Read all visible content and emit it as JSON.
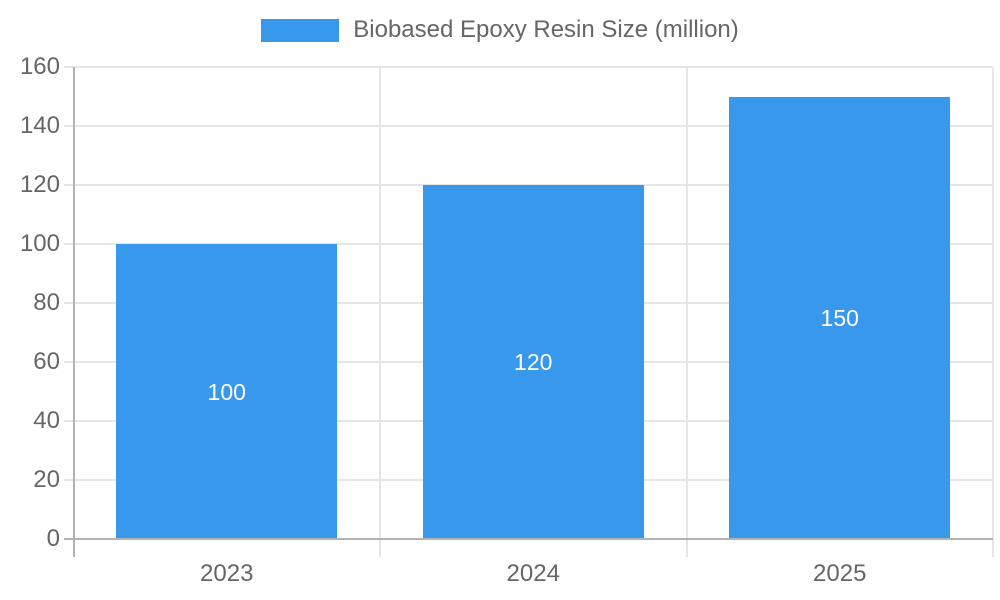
{
  "chart_data": {
    "type": "bar",
    "categories": [
      "2023",
      "2024",
      "2025"
    ],
    "values": [
      100,
      120,
      150
    ],
    "series_name": "Biobased Epoxy Resin Size (million)",
    "title": "",
    "xlabel": "",
    "ylabel": "",
    "ylim": [
      0,
      160
    ],
    "ytick_step": 20,
    "yticks": [
      0,
      20,
      40,
      60,
      80,
      100,
      120,
      140,
      160
    ],
    "grid": true,
    "legend_position": "top-center",
    "bar_labels_position": "inside-center",
    "colors": {
      "bar": "#3898ec",
      "bar_value_label": "#ffffff",
      "axis_text": "#666666",
      "legend_text": "#666666",
      "gridline": "#e6e6e6",
      "axis_line": "#b3b3b3",
      "background": "#ffffff"
    }
  }
}
